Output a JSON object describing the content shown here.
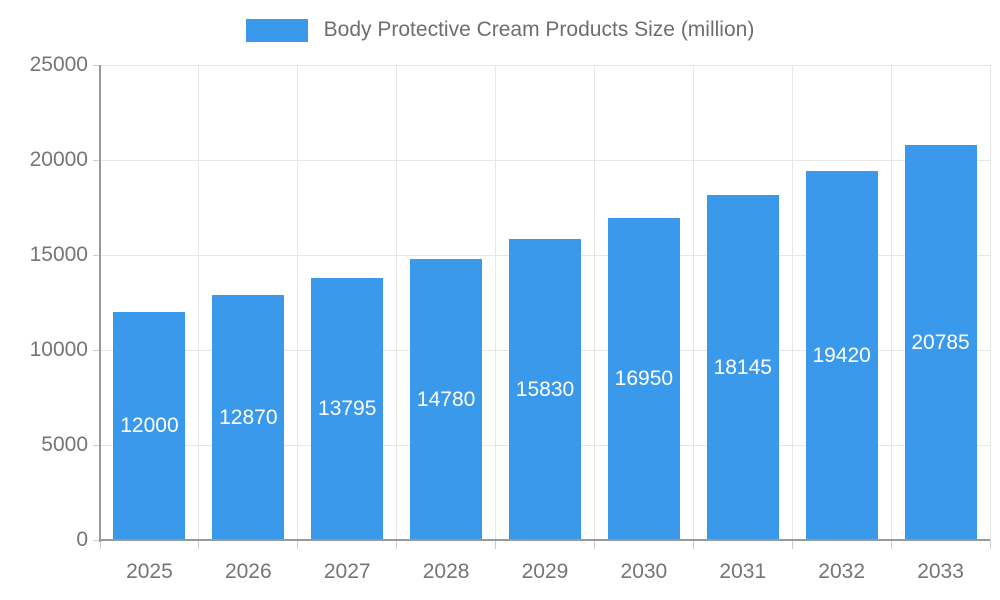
{
  "legend": {
    "label": "Body Protective Cream Products Size (million)"
  },
  "chart_data": {
    "type": "bar",
    "title": "Body Protective Cream Products Size (million)",
    "categories": [
      "2025",
      "2026",
      "2027",
      "2028",
      "2029",
      "2030",
      "2031",
      "2032",
      "2033"
    ],
    "values": [
      12000,
      12870,
      13795,
      14780,
      15830,
      16950,
      18145,
      19420,
      20785
    ],
    "series_name": "Body Protective Cream Products Size (million)",
    "xlabel": "",
    "ylabel": "",
    "ylim": [
      0,
      25000
    ],
    "yticks": [
      0,
      5000,
      10000,
      15000,
      20000,
      25000
    ],
    "grid": true,
    "legend_position": "top",
    "value_labels": "inside-middle-white"
  },
  "colors": {
    "bar": "#3B99EC",
    "grid": "#e6e6e6",
    "axis": "#999999",
    "tick": "#cccccc",
    "tick_text": "#757575",
    "legend_text": "#6e6e6e",
    "value_text": "#ffffff",
    "background": "#ffffff"
  }
}
